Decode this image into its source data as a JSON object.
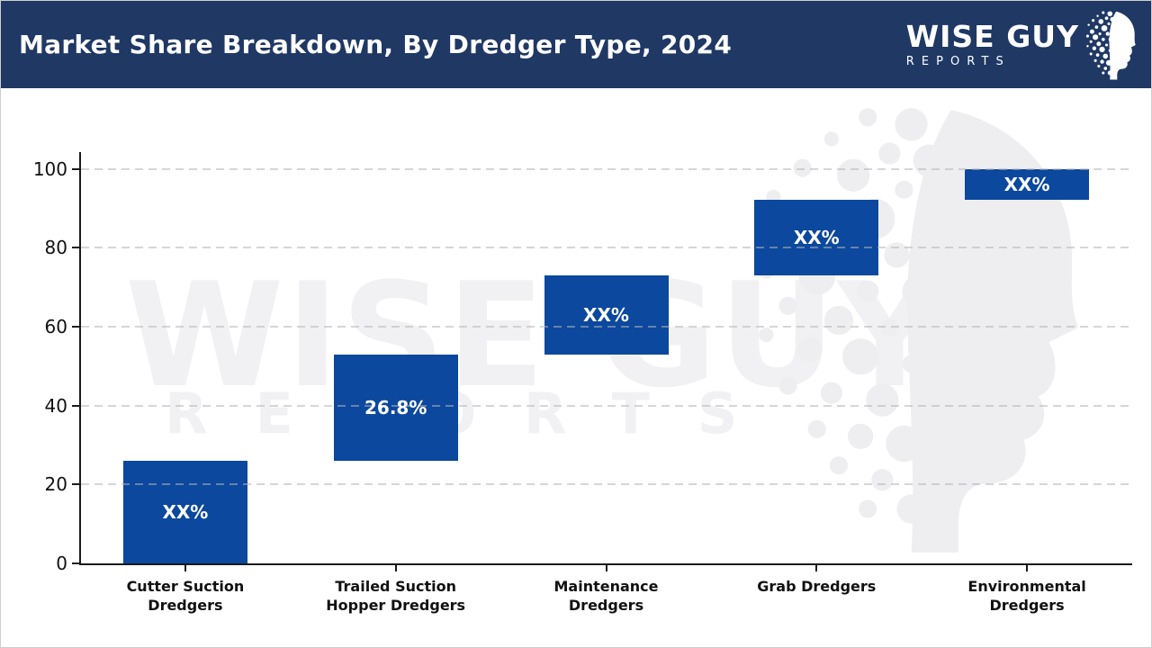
{
  "header": {
    "title": "Market Share Breakdown, By Dredger Type, 2024",
    "logo": {
      "wordmark": "WISE GUY",
      "subtitle": "REPORTS"
    }
  },
  "watermark": {
    "wordmark": "WISE GUY",
    "subtitle": "REPORTS"
  },
  "chart_data": {
    "type": "bar",
    "subtype": "waterfall-floating-bars",
    "title": "Market Share Breakdown, By Dredger Type, 2024",
    "categories": [
      "Cutter Suction Dredgers",
      "Trailed Suction Hopper Dredgers",
      "Maintenance Dredgers",
      "Grab Dredgers",
      "Environmental Dredgers"
    ],
    "category_lines": [
      [
        "Cutter Suction",
        "Dredgers"
      ],
      [
        "Trailed Suction",
        "Hopper Dredgers"
      ],
      [
        "Maintenance",
        "Dredgers"
      ],
      [
        "Grab Dredgers"
      ],
      [
        "Environmental",
        "Dredgers"
      ]
    ],
    "segments": [
      {
        "category": "Cutter Suction Dredgers",
        "start": 0,
        "end": 26,
        "label": "XX%"
      },
      {
        "category": "Trailed Suction Hopper Dredgers",
        "start": 26,
        "end": 52.8,
        "label": "26.8%"
      },
      {
        "category": "Maintenance Dredgers",
        "start": 52.8,
        "end": 73,
        "label": "XX%"
      },
      {
        "category": "Grab Dredgers",
        "start": 73,
        "end": 92.1,
        "label": "XX%"
      },
      {
        "category": "Environmental Dredgers",
        "start": 92.1,
        "end": 100,
        "label": "XX%"
      }
    ],
    "yticks": [
      0,
      20,
      40,
      60,
      80,
      100
    ],
    "ylim": [
      0,
      100
    ],
    "xlabel": "",
    "ylabel": "",
    "grid": "horizontal-dashed",
    "legend": "none",
    "colors": {
      "bar": "#0b489e",
      "bar_label": "#ffffff",
      "axis": "#1a1a1a",
      "tick_label": "#111111",
      "grid": "#d8d8d8",
      "header_bg": "#1f3864",
      "header_text": "#ffffff",
      "watermark": "#f1f1f4"
    }
  }
}
